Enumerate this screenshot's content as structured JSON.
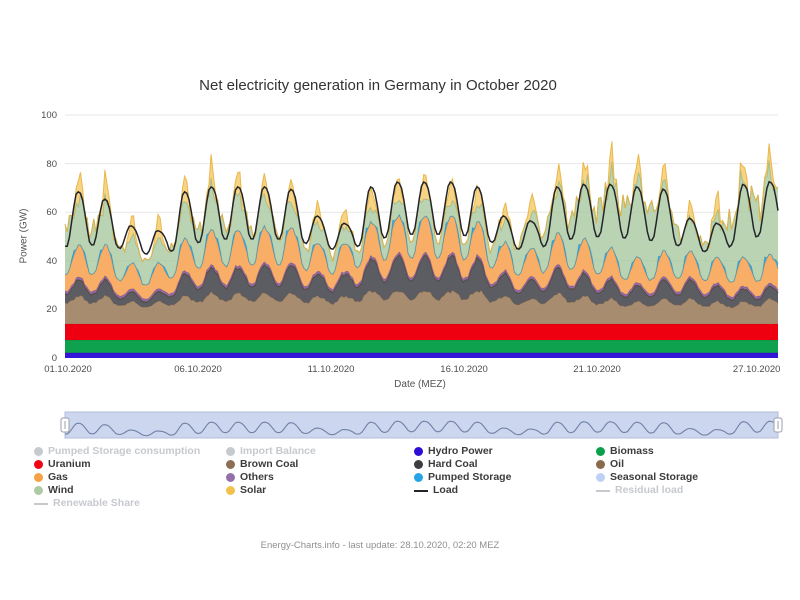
{
  "page": {
    "title": "Net electricity generation in Germany in October 2020",
    "footer": "Energy-Charts.info - last update: 28.10.2020, 02:20 MEZ"
  },
  "chart": {
    "grid_color": "#e7e7e7",
    "y_axis": {
      "title": "Power (GW)",
      "min": 0,
      "max": 100,
      "ticks": [
        "0",
        "20",
        "40",
        "60",
        "80",
        "100"
      ]
    },
    "x_axis": {
      "title": "Date (MEZ)",
      "tick_days": [
        0,
        5,
        10,
        15,
        20,
        26
      ],
      "tick_labels": [
        "01.10.2020",
        "06.10.2020",
        "11.10.2020",
        "16.10.2020",
        "21.10.2020",
        "27.10.2020"
      ]
    }
  },
  "chart_data": {
    "type": "area",
    "stacking": "normal",
    "unit": "GW",
    "title": "Net electricity generation in Germany in October 2020",
    "start_date": "01.10.2020",
    "end_date": "27.10.2020",
    "x_domain_days": 26.8,
    "values_resolution": "estimated daily values in GW, days 01.10.2020 - 27.10.2020",
    "series": [
      {
        "name": "Hydro Power",
        "slug": "hydro-power",
        "shape": "flat",
        "constant": 2.2,
        "color": "#3414d6",
        "edge": "#2a0cb8",
        "opacity": 1
      },
      {
        "name": "Biomass",
        "slug": "biomass",
        "shape": "flat",
        "constant": 5.2,
        "color": "#0fa24e",
        "edge": "#0b8a40",
        "opacity": 1
      },
      {
        "name": "Uranium",
        "slug": "uranium",
        "shape": "flat",
        "constant": 6.6,
        "color": "#ee0011",
        "edge": "#cc000f",
        "opacity": 1
      },
      {
        "name": "Brown Coal",
        "slug": "brown-coal",
        "shape": "coal",
        "daily": [
          10,
          10,
          8,
          8,
          10,
          11,
          11,
          11,
          11,
          10,
          10,
          12,
          12,
          12,
          12,
          12,
          10,
          9,
          11,
          10,
          9,
          8,
          9,
          9,
          8,
          8,
          9
        ],
        "color": "#a08263",
        "edge": "#8a6d52",
        "opacity": 0.92
      },
      {
        "name": "Hard Coal",
        "slug": "hard-coal",
        "shape": "hardcoal",
        "daily": [
          5,
          5,
          3,
          3,
          7,
          8,
          8,
          9,
          9,
          7,
          7,
          10,
          11,
          11,
          11,
          10,
          7,
          6,
          8,
          7,
          6,
          5,
          6,
          6,
          5,
          4,
          4
        ],
        "color": "#53545a",
        "edge": "#404148",
        "opacity": 0.95
      },
      {
        "name": "Oil",
        "slug": "oil",
        "shape": "flat",
        "constant": 0.3,
        "color": "#7d5c3f",
        "edge": "#664a30",
        "opacity": 1
      },
      {
        "name": "Others",
        "slug": "others",
        "shape": "flat",
        "constant": 1.0,
        "color": "#8f6aa8",
        "edge": "#77538f",
        "opacity": 1
      },
      {
        "name": "Gas",
        "slug": "gas",
        "shape": "gas",
        "daily": [
          10,
          10,
          8,
          8,
          10,
          11,
          11,
          11,
          11,
          9,
          9,
          11,
          12,
          12,
          12,
          11,
          9,
          9,
          10,
          10,
          9,
          8,
          8,
          8,
          8,
          9,
          9
        ],
        "color": "#f9a75b",
        "edge": "#ef9440",
        "opacity": 0.92
      },
      {
        "name": "Pumped Storage",
        "slug": "pumped-storage",
        "shape": "pumped",
        "daily": [
          3,
          3,
          2,
          2,
          3,
          3.5,
          3,
          3,
          3,
          2.5,
          2,
          3,
          3.5,
          3.5,
          3,
          3,
          2.5,
          2,
          3,
          3,
          2.5,
          2,
          2.5,
          2.5,
          2,
          2.5,
          3
        ],
        "color": "#2da4e6",
        "edge": "#1b8ccc",
        "opacity": 0.95
      },
      {
        "name": "Wind",
        "slug": "wind",
        "shape": "wind",
        "daily": [
          18,
          17,
          10,
          9,
          14,
          16,
          14,
          12,
          10,
          8,
          7,
          6,
          7,
          8,
          6,
          7,
          9,
          14,
          18,
          22,
          28,
          30,
          26,
          12,
          16,
          30,
          32
        ],
        "color": "#a9c89f",
        "edge": "#8fb587",
        "opacity": 0.8
      },
      {
        "name": "Solar",
        "slug": "solar",
        "shape": "solar",
        "daily": [
          11,
          10,
          9,
          10,
          11,
          10,
          10,
          9,
          10,
          9,
          8,
          9,
          10,
          11,
          10,
          9,
          7,
          8,
          8,
          8,
          9,
          8,
          7,
          7,
          8,
          7,
          8
        ],
        "color": "#f4c356",
        "edge": "#e8b13e",
        "opacity": 0.72
      },
      {
        "name": "Load",
        "slug": "load",
        "shape": "line",
        "color": "#23252b",
        "daily_peak": [
          68,
          65,
          54,
          52,
          68,
          70,
          70,
          70,
          69,
          58,
          55,
          70,
          72,
          72,
          72,
          70,
          58,
          56,
          70,
          71,
          71,
          70,
          69,
          57,
          55,
          71,
          72
        ],
        "daily_min": [
          46,
          47,
          44,
          42,
          46,
          49,
          49,
          49,
          49,
          46,
          44,
          48,
          51,
          51,
          51,
          50,
          46,
          44,
          48,
          50,
          50,
          49,
          48,
          45,
          43,
          49,
          51
        ]
      }
    ]
  },
  "legend": {
    "text_color": "#3c3c3c",
    "disabled_color": "#c6c9ce",
    "column_lefts": [
      34,
      226,
      414,
      596
    ],
    "columns": [
      [
        {
          "label": "Pumped Storage consumption",
          "marker": "dot",
          "color": "#c6c9ce",
          "enabled": false
        },
        {
          "label": "Uranium",
          "marker": "dot",
          "color": "#f00314",
          "enabled": true
        },
        {
          "label": "Gas",
          "marker": "dot",
          "color": "#f7a145",
          "enabled": true
        },
        {
          "label": "Wind",
          "marker": "dot",
          "color": "#aecaa4",
          "enabled": true
        },
        {
          "label": "Renewable Share",
          "marker": "line",
          "color": "#c6c9ce",
          "enabled": false
        }
      ],
      [
        {
          "label": "Import Balance",
          "marker": "dot",
          "color": "#c6c9ce",
          "enabled": false
        },
        {
          "label": "Brown Coal",
          "marker": "dot",
          "color": "#8d6f55",
          "enabled": true
        },
        {
          "label": "Others",
          "marker": "dot",
          "color": "#9470ab",
          "enabled": true
        },
        {
          "label": "Solar",
          "marker": "dot",
          "color": "#f2c24d",
          "enabled": true
        }
      ],
      [
        {
          "label": "Hydro Power",
          "marker": "dot",
          "color": "#2b0dd3",
          "enabled": true
        },
        {
          "label": "Hard Coal",
          "marker": "dot",
          "color": "#3d3e42",
          "enabled": true
        },
        {
          "label": "Pumped Storage",
          "marker": "dot",
          "color": "#27a4e6",
          "enabled": true
        },
        {
          "label": "Load",
          "marker": "line",
          "color": "#23252b",
          "enabled": true
        }
      ],
      [
        {
          "label": "Biomass",
          "marker": "dot",
          "color": "#0aa04a",
          "enabled": true
        },
        {
          "label": "Oil",
          "marker": "dot",
          "color": "#8a6a4c",
          "enabled": true
        },
        {
          "label": "Seasonal Storage",
          "marker": "dot",
          "color": "#bfd0f6",
          "enabled": true
        },
        {
          "label": "Residual load",
          "marker": "line",
          "color": "#c6c9ce",
          "enabled": false
        }
      ]
    ]
  },
  "navigator": {
    "fill": "#ccd6ee",
    "border": "#b3bdd8",
    "line_color": "#7081a6",
    "handle_fill": "#ffffff",
    "handle_border": "#999fae"
  }
}
